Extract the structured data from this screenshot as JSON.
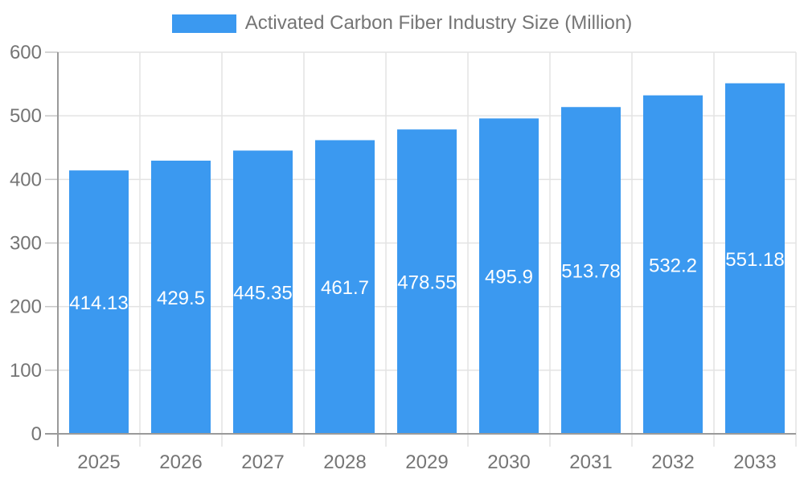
{
  "chart_data": {
    "type": "bar",
    "legend": "Activated Carbon Fiber Industry Size (Million)",
    "legend_position": "top-center",
    "categories": [
      "2025",
      "2026",
      "2027",
      "2028",
      "2029",
      "2030",
      "2031",
      "2032",
      "2033"
    ],
    "series": [
      {
        "name": "Activated Carbon Fiber Industry Size (Million)",
        "values": [
          414.13,
          429.5,
          445.35,
          461.7,
          478.55,
          495.9,
          513.78,
          532.2,
          551.18
        ]
      }
    ],
    "value_labels": [
      "414.13",
      "429.5",
      "445.35",
      "461.7",
      "478.55",
      "495.9",
      "513.78",
      "532.2",
      "551.18"
    ],
    "xlabel": "",
    "ylabel": "",
    "ylim": [
      0,
      600
    ],
    "ytick_step": 100,
    "yticks": [
      "0",
      "100",
      "200",
      "300",
      "400",
      "500",
      "600"
    ],
    "grid": true,
    "colors": {
      "bar": "#3B99F0",
      "grid": "#E3E3E3",
      "axis": "#9A9A9A",
      "tick": "#C6C6C6",
      "axis_text": "#757575",
      "value_text": "#FFFFFF",
      "background": "#FFFFFF"
    }
  }
}
